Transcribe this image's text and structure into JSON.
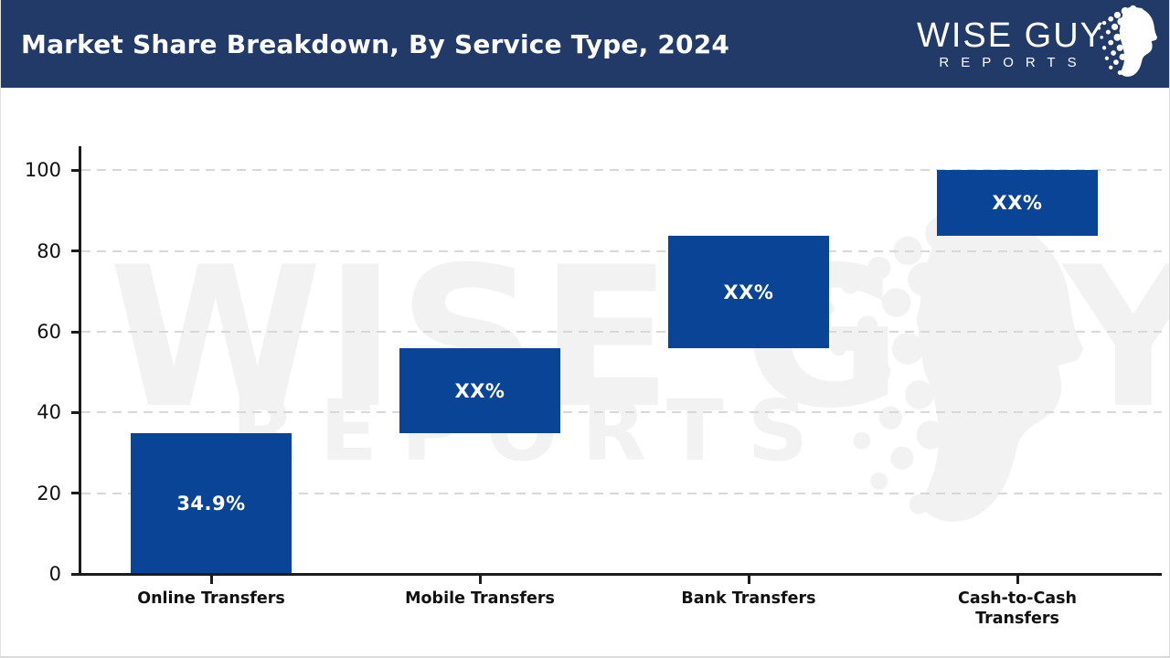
{
  "header": {
    "title": "Market Share Breakdown, By Service Type, 2024",
    "logo": {
      "brand": "WISE GUY",
      "sub": "REPORTS"
    },
    "bg_color": "#213a67"
  },
  "watermark": {
    "brand": "WISE GUY",
    "sub": "REPORTS"
  },
  "chart_data": {
    "type": "bar",
    "subtype": "floating-waterfall",
    "title": "Market Share Breakdown, By Service Type, 2024",
    "xlabel": "",
    "ylabel": "",
    "categories": [
      "Online Transfers",
      "Mobile Transfers",
      "Bank Transfers",
      "Cash-to-Cash Transfers"
    ],
    "segments": [
      {
        "category": "Online Transfers",
        "start": 0,
        "end": 34.9,
        "label": "34.9%",
        "approx_size": 34.9
      },
      {
        "category": "Mobile Transfers",
        "start": 34.9,
        "end": 55.9,
        "label": "XX%",
        "approx_size": 21.0
      },
      {
        "category": "Bank Transfers",
        "start": 55.9,
        "end": 83.7,
        "label": "XX%",
        "approx_size": 27.8
      },
      {
        "category": "Cash-to-Cash Transfers",
        "start": 83.7,
        "end": 100,
        "label": "XX%",
        "approx_size": 16.3
      }
    ],
    "yticks": [
      0,
      20,
      40,
      60,
      80,
      100
    ],
    "ylim": [
      0,
      106
    ],
    "grid": "horizontal-dashed",
    "legend": "none",
    "colors": {
      "bar": "#0a4496",
      "bar_label": "#ffffff",
      "axis": "#1c1c1c",
      "gridline": "#d8d8d8",
      "header_bg": "#213a67",
      "watermark": "#f2f2f2"
    }
  }
}
